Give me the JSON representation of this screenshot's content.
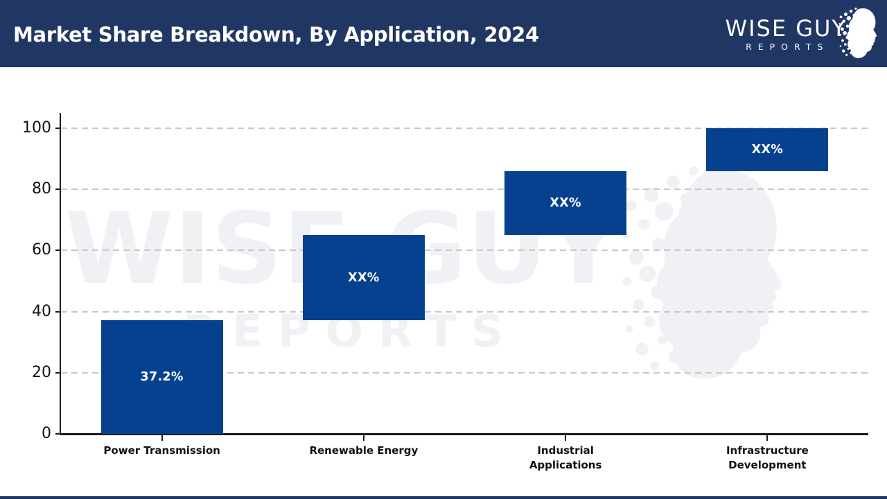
{
  "header": {
    "title": "Market Share Breakdown, By Application, 2024",
    "brand": {
      "name": "WISE GUY",
      "sub": "REPORTS"
    }
  },
  "watermark": {
    "line1": "WISE GUY",
    "line2": "REPORTS"
  },
  "colors": {
    "header_bg": "#213763",
    "bar": "#06418f",
    "bar_label": "#ffffff",
    "grid": "#c7c7c7",
    "axis": "#1a1a1a",
    "watermark": "#eff1f4"
  },
  "chart_data": {
    "type": "bar",
    "subtype": "waterfall",
    "title": "Market Share Breakdown, By Application, 2024",
    "xlabel": "",
    "ylabel": "",
    "categories": [
      "Power Transmission",
      "Renewable Energy",
      "Industrial\nApplications",
      "Infrastructure\nDevelopment"
    ],
    "segments": [
      {
        "category": "Power Transmission",
        "start": 0,
        "end": 37.2,
        "label": "37.2%"
      },
      {
        "category": "Renewable Energy",
        "start": 37.2,
        "end": 65,
        "label": "XX%"
      },
      {
        "category": "Industrial Applications",
        "start": 65,
        "end": 86,
        "label": "XX%"
      },
      {
        "category": "Infrastructure Development",
        "start": 86,
        "end": 100,
        "label": "XX%"
      }
    ],
    "yticks": [
      0,
      20,
      40,
      60,
      80,
      100
    ],
    "ylim": [
      0,
      105
    ],
    "grid": "horizontal-dashed",
    "legend": null
  }
}
